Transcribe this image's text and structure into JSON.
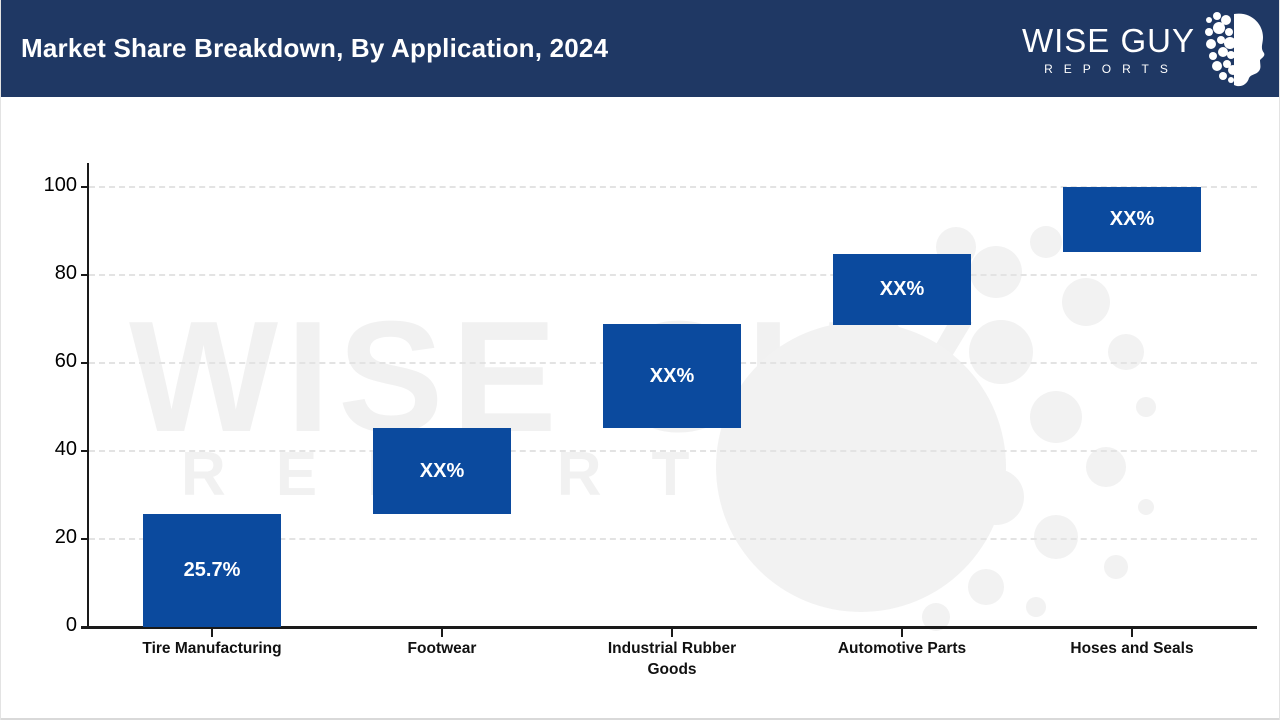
{
  "header": {
    "title": "Market Share Breakdown, By Application, 2024",
    "logo": {
      "line1": "WISE GUY",
      "line2": "REPORTS"
    }
  },
  "watermark": {
    "line1": "WISE GUY",
    "line2": "REPORTS"
  },
  "chart_data": {
    "type": "bar",
    "subtype": "waterfall-floating-segments",
    "title": "Market Share Breakdown, By Application, 2024",
    "categories": [
      "Tire Manufacturing",
      "Footwear",
      "Industrial Rubber Goods",
      "Automotive Parts",
      "Hoses and Seals"
    ],
    "segments": [
      {
        "category": "Tire Manufacturing",
        "start": 0,
        "end": 25.7,
        "label": "25.7%"
      },
      {
        "category": "Footwear",
        "start": 25.7,
        "end": 45.2,
        "label": "XX%"
      },
      {
        "category": "Industrial Rubber Goods",
        "start": 45.2,
        "end": 68.8,
        "label": "XX%"
      },
      {
        "category": "Automotive Parts",
        "start": 68.6,
        "end": 84.8,
        "label": "XX%"
      },
      {
        "category": "Hoses and Seals",
        "start": 85.3,
        "end": 100,
        "label": "XX%"
      }
    ],
    "yticks": [
      0,
      20,
      40,
      60,
      80,
      100
    ],
    "ylim": [
      0,
      105
    ],
    "xlabel": "",
    "ylabel": "",
    "grid": "horizontal-dashed",
    "legend": "none",
    "colors": {
      "bar": "#0b4a9e",
      "bar_label": "#ffffff",
      "axis": "#1a1a1a",
      "tick_label": "#000000",
      "gridline": "#e3e3e3",
      "header_bg": "#1f3864",
      "watermark": "#f1f1f1"
    }
  }
}
